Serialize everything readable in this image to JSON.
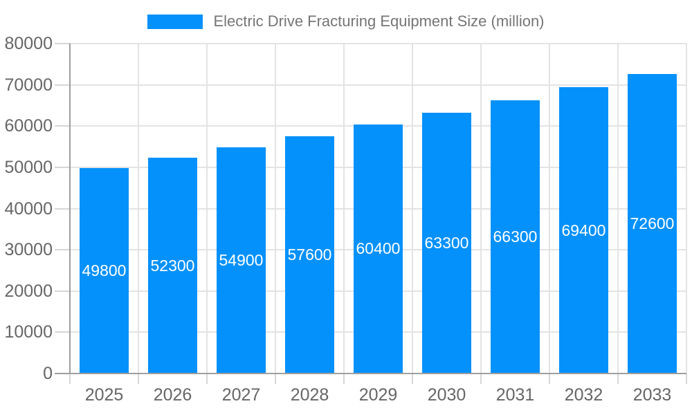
{
  "chart_data": {
    "type": "bar",
    "title": "Electric Drive Fracturing Equipment Size (million)",
    "categories": [
      "2025",
      "2026",
      "2027",
      "2028",
      "2029",
      "2030",
      "2031",
      "2032",
      "2033"
    ],
    "values": [
      49800,
      52300,
      54900,
      57600,
      60400,
      63300,
      66300,
      69400,
      72600
    ],
    "bar_labels": [
      "49800",
      "52300",
      "54900",
      "57600",
      "60400",
      "63300",
      "66300",
      "69400",
      "72600"
    ],
    "xlabel": "",
    "ylabel": "",
    "ylim": [
      0,
      80000
    ],
    "ytick_interval": 10000,
    "ytick_labels": [
      "0",
      "10000",
      "20000",
      "30000",
      "40000",
      "50000",
      "60000",
      "70000",
      "80000"
    ],
    "grid": true,
    "legend_position": "top",
    "bar_color": "#0591fb",
    "bar_label_color": "#ffffff",
    "axis_text_color": "#666666",
    "axis_line_color": "#9e9e9e",
    "gridline_color": "#e3e3e3"
  }
}
